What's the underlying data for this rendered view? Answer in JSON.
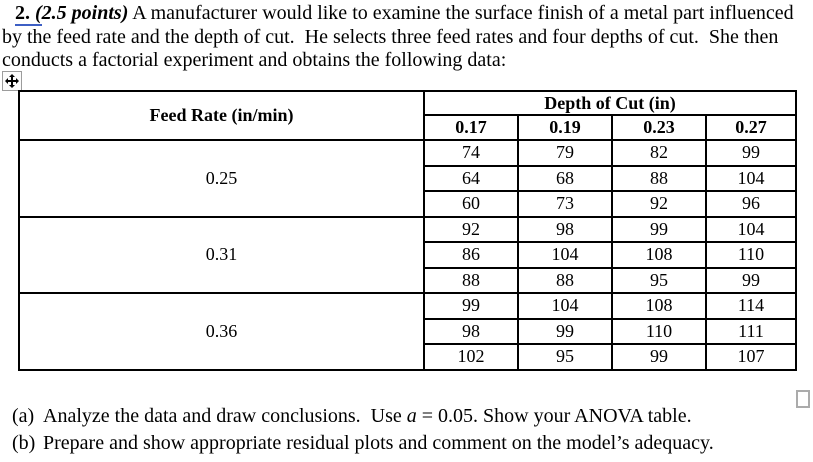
{
  "intro": {
    "number": "2. ",
    "paren": "(",
    "points_rest": "2.5 points)",
    "line1_rest": " A manufacturer would like to examine the surface finish of a metal part influenced",
    "line2": "by the feed rate and the depth of cut.  He selects three feed rates and four depths of cut.  She then",
    "line3": "conducts a factorial experiment and obtains the following data:"
  },
  "table": {
    "row_header_label": "Feed Rate (in/min)",
    "col_group_label": "Depth of Cut (in)",
    "depth_levels": [
      "0.17",
      "0.19",
      "0.23",
      "0.27"
    ],
    "groups": [
      {
        "feed_rate": "0.25",
        "rows": [
          [
            "74",
            "79",
            "82",
            "99"
          ],
          [
            "64",
            "68",
            "88",
            "104"
          ],
          [
            "60",
            "73",
            "92",
            "96"
          ]
        ]
      },
      {
        "feed_rate": "0.31",
        "rows": [
          [
            "92",
            "98",
            "99",
            "104"
          ],
          [
            "86",
            "104",
            "108",
            "110"
          ],
          [
            "88",
            "88",
            "95",
            "99"
          ]
        ]
      },
      {
        "feed_rate": "0.36",
        "rows": [
          [
            "99",
            "104",
            "108",
            "114"
          ],
          [
            "98",
            "99",
            "110",
            "111"
          ],
          [
            "102",
            "95",
            "99",
            "107"
          ]
        ]
      }
    ]
  },
  "questions": {
    "a_label": "(a)",
    "a_pre": "Analyze the data and draw conclusions.  Use ",
    "a_var": "a",
    "a_post": " = 0.05. Show your ANOVA table.",
    "b_label": "(b)",
    "b_text": "Prepare and show appropriate residual plots and comment on the model’s adequacy."
  },
  "colors": {
    "number_underline": "#3d5fc4",
    "table_border": "#000000",
    "handle_border": "#9c9c9c",
    "text": "#000000",
    "background": "#ffffff"
  },
  "icons": {
    "move_handle": "move-icon",
    "resize_handle": "resize-handle-square"
  }
}
